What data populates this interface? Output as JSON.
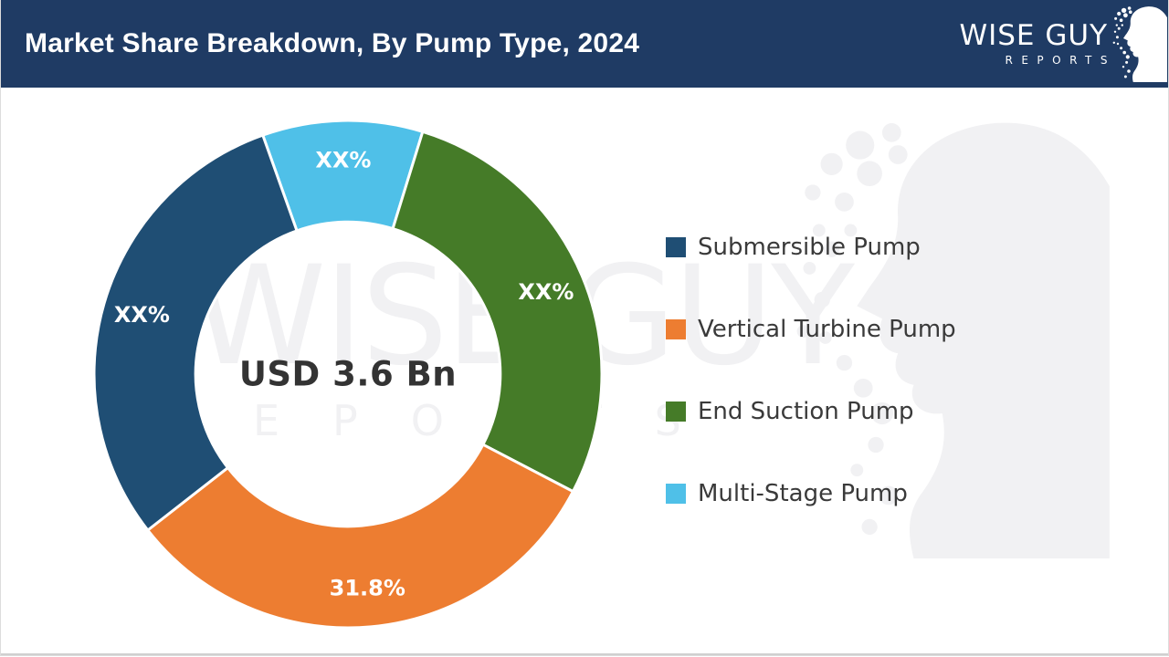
{
  "header": {
    "title": "Market Share Breakdown, By Pump Type, 2024",
    "logo": {
      "line1": "WISE GUY",
      "line2": "REPORTS"
    }
  },
  "watermark": {
    "line1": "WISE GUY",
    "line2": "REPORTS"
  },
  "chart_data": {
    "type": "pie",
    "variant": "donut",
    "title": "Market Share Breakdown, By Pump Type, 2024",
    "center_label": "USD 3.6 Bn",
    "unit": "percent market share",
    "start_angle_deg": -19.6,
    "inner_radius_ratio": 0.6,
    "segments": [
      {
        "name": "Multi-Stage Pump",
        "label": "XX%",
        "value_pct": 10.2,
        "color": "#4FC0E8"
      },
      {
        "name": "End Suction Pump",
        "label": "XX%",
        "value_pct": 27.9,
        "color": "#457B28"
      },
      {
        "name": "Vertical Turbine Pump",
        "label": "31.8%",
        "value_pct": 31.8,
        "color": "#ED7D31"
      },
      {
        "name": "Submersible Pump",
        "label": "XX%",
        "value_pct": 30.1,
        "color": "#1F4E74"
      }
    ],
    "legend": {
      "position": "right",
      "items": [
        {
          "label": "Submersible Pump",
          "color": "#1F4E74"
        },
        {
          "label": "Vertical Turbine Pump",
          "color": "#ED7D31"
        },
        {
          "label": "End Suction Pump",
          "color": "#457B28"
        },
        {
          "label": "Multi-Stage Pump",
          "color": "#4FC0E8"
        }
      ]
    }
  },
  "colors": {
    "header_bg": "#1F3B64",
    "watermark": "#F1F1F3",
    "center_text": "#333333",
    "legend_text": "#3A3A3A",
    "slice_label": "#FFFFFF",
    "bottom_line": "#D0D0D0"
  }
}
